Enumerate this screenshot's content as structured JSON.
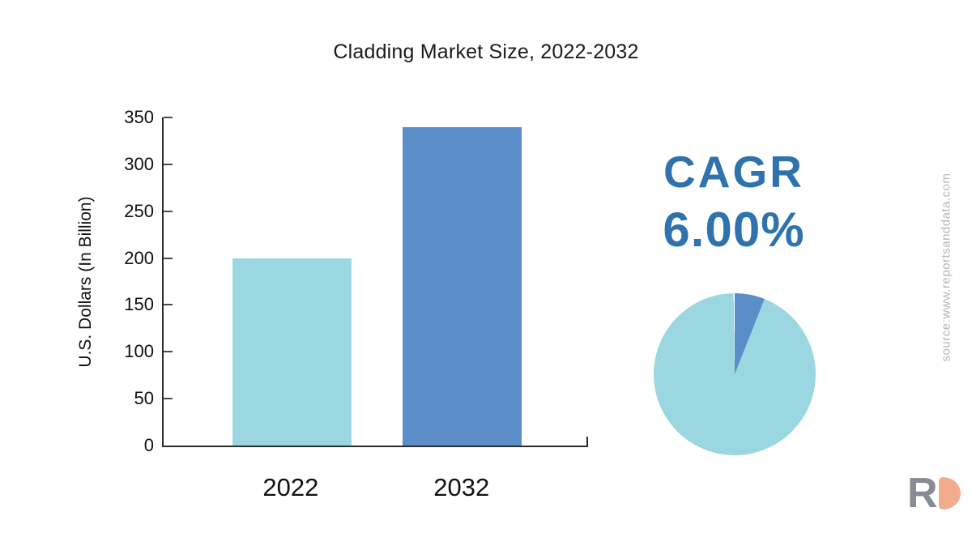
{
  "colors": {
    "accent": "#2e73ad",
    "bar_2022": "#9ad7e1",
    "bar_2032": "#5b8dc9",
    "axis": "#2b2b2b",
    "source_text": "#b6b6b6",
    "logo_gray": "#878b93",
    "logo_peach": "#f3ab8e"
  },
  "chart_data": [
    {
      "type": "bar",
      "title": "Cladding Market Size, 2022-2032",
      "categories": [
        "2022",
        "2032"
      ],
      "values": [
        200,
        340
      ],
      "bar_colors": [
        "#9ad7e1",
        "#5b8dc9"
      ],
      "xlabel": "",
      "ylabel": "U.S. Dollars (In Billion)",
      "ylim": [
        0,
        350
      ],
      "yticks": [
        0,
        50,
        100,
        150,
        200,
        250,
        300,
        350
      ],
      "grid": false,
      "legend": "none"
    },
    {
      "type": "pie",
      "start_angle_deg": 0,
      "direction": "clockwise",
      "slices": [
        {
          "value": 6,
          "color": "#5b8dc9"
        },
        {
          "value": 94,
          "color": "#9ad7e1"
        }
      ]
    }
  ],
  "annotations": {
    "cagr_label": "CAGR",
    "cagr_value": "6.00%"
  },
  "source_note": "source:www.reportsanddata.com",
  "logo": {
    "letter": "R",
    "shape": "d-half-disc"
  }
}
